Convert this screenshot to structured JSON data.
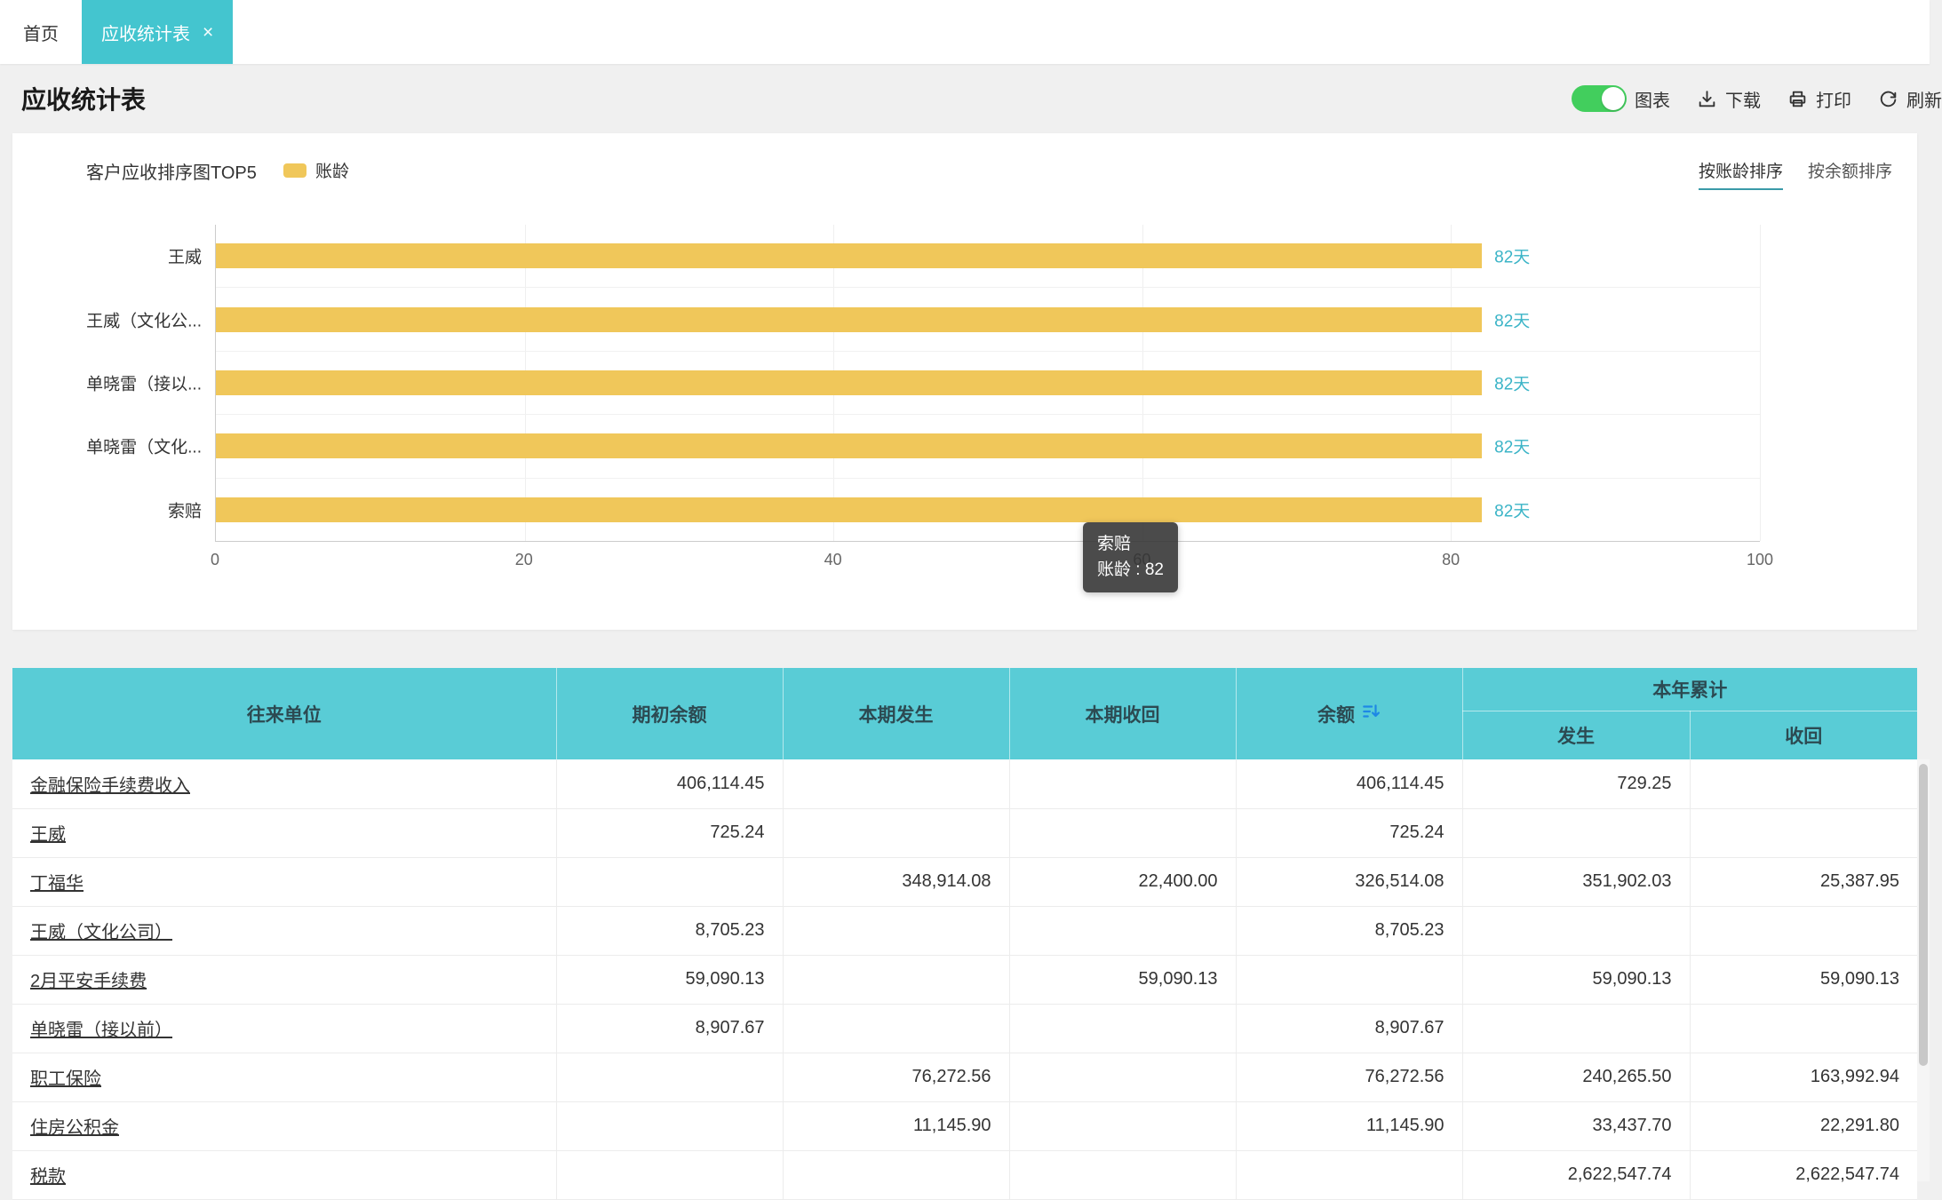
{
  "tab_bar": {
    "home_tab": "首页",
    "active_tab": "应收统计表",
    "close": "×"
  },
  "toolbar": {
    "title": "应收统计表",
    "chart_toggle_label": "图表",
    "download": "下载",
    "print": "打印",
    "refresh": "刷新"
  },
  "chart_header": {
    "title": "客户应收排序图TOP5",
    "legend_label": "账龄",
    "sort_by_age": "按账龄排序",
    "sort_by_balance": "按余额排序"
  },
  "chart_data": {
    "type": "bar",
    "orientation": "horizontal",
    "title": "客户应收排序图TOP5",
    "series_name": "账龄",
    "categories": [
      "王威",
      "王威（文化公...",
      "单晓雷（接以...",
      "单晓雷（文化...",
      "索赔"
    ],
    "values": [
      82,
      82,
      82,
      82,
      82
    ],
    "unit": "天",
    "xlim": [
      0,
      100
    ],
    "xticks": [
      "0",
      "20",
      "40",
      "60",
      "80",
      "100"
    ],
    "bar_color": "#f0c75a",
    "value_label_color": "#3bb4c7",
    "legend_position": "top-left",
    "grid": true
  },
  "tooltip": {
    "name": "索赔",
    "label": "账龄 : 82"
  },
  "table": {
    "columns": [
      "往来单位",
      "期初余额",
      "本期发生",
      "本期收回",
      "余额",
      "本年累计"
    ],
    "sub_columns": [
      "发生",
      "收回"
    ],
    "rows": [
      [
        "金融保险手续费收入",
        "406,114.45",
        "",
        "",
        "406,114.45",
        "729.25",
        ""
      ],
      [
        "王威",
        "725.24",
        "",
        "",
        "725.24",
        "",
        ""
      ],
      [
        "丁福华",
        "",
        "348,914.08",
        "22,400.00",
        "326,514.08",
        "351,902.03",
        "25,387.95"
      ],
      [
        "王威（文化公司）",
        "8,705.23",
        "",
        "",
        "8,705.23",
        "",
        ""
      ],
      [
        "2月平安手续费",
        "59,090.13",
        "",
        "59,090.13",
        "",
        "59,090.13",
        "59,090.13"
      ],
      [
        "单晓雷（接以前）",
        "8,907.67",
        "",
        "",
        "8,907.67",
        "",
        ""
      ],
      [
        "职工保险",
        "",
        "76,272.56",
        "",
        "76,272.56",
        "240,265.50",
        "163,992.94"
      ],
      [
        "住房公积金",
        "",
        "11,145.90",
        "",
        "11,145.90",
        "33,437.70",
        "22,291.80"
      ],
      [
        "税款",
        "",
        "",
        "",
        "",
        "2,622,547.74",
        "2,622,547.74"
      ]
    ]
  },
  "colors": {
    "accent_teal": "#44c5cf",
    "table_header_teal": "#59ccd6",
    "bar_yellow": "#f0c75a",
    "toggle_green": "#42ce5d",
    "sort_icon_blue": "#1e88e5"
  }
}
